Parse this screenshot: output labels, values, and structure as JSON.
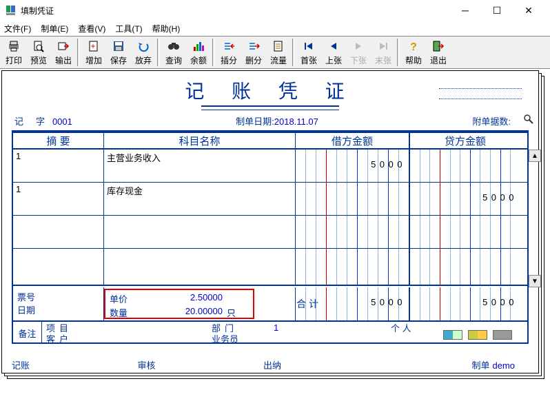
{
  "window": {
    "title": "填制凭证"
  },
  "menu": {
    "file": "文件(F)",
    "create": "制单(E)",
    "view": "查看(V)",
    "tool": "工具(T)",
    "help": "帮助(H)"
  },
  "toolbar": {
    "print": "打印",
    "preview": "预览",
    "output": "输出",
    "add": "增加",
    "save": "保存",
    "discard": "放弃",
    "query": "查询",
    "balance": "余额",
    "insrow": "插分",
    "delrow": "删分",
    "flow": "流量",
    "first": "首张",
    "prev": "上张",
    "next": "下张",
    "last": "末张",
    "help": "帮助",
    "exit": "退出"
  },
  "doc": {
    "title": "记 账 凭 证",
    "zi_label": "记",
    "zi_label2": "字",
    "number": "0001",
    "date_label": "制单日期:",
    "date": "2018.11.07",
    "attach_label": "附单据数:",
    "headers": {
      "summary": "摘 要",
      "subject": "科目名称",
      "debit": "借方金额",
      "credit": "贷方金额"
    },
    "rows": [
      {
        "idx": "1",
        "subject": "主营业务收入",
        "debit": "5000",
        "credit": ""
      },
      {
        "idx": "1",
        "subject": "库存现金",
        "debit": "",
        "credit": "5000"
      },
      {
        "idx": "",
        "subject": "",
        "debit": "",
        "credit": ""
      },
      {
        "idx": "",
        "subject": "",
        "debit": "",
        "credit": ""
      }
    ],
    "footer": {
      "ticket_label": "票号",
      "date_label": "日期",
      "price_label": "单价",
      "price": "2.50000",
      "qty_label": "数量",
      "qty": "20.00000",
      "unit": "只",
      "total_label": "合 计",
      "debit_total": "5000",
      "credit_total": "5000"
    },
    "bottom": {
      "remark_label": "备注",
      "proj_label": "项目",
      "dept_label": "部门",
      "dept_val": "1",
      "person_label": "个 人",
      "cust_label": "客户",
      "sales_label": "业务员"
    },
    "signoff": {
      "book_label": "记账",
      "audit_label": "审核",
      "cashier_label": "出纳",
      "maker_label": "制单",
      "maker_val": "demo"
    }
  }
}
